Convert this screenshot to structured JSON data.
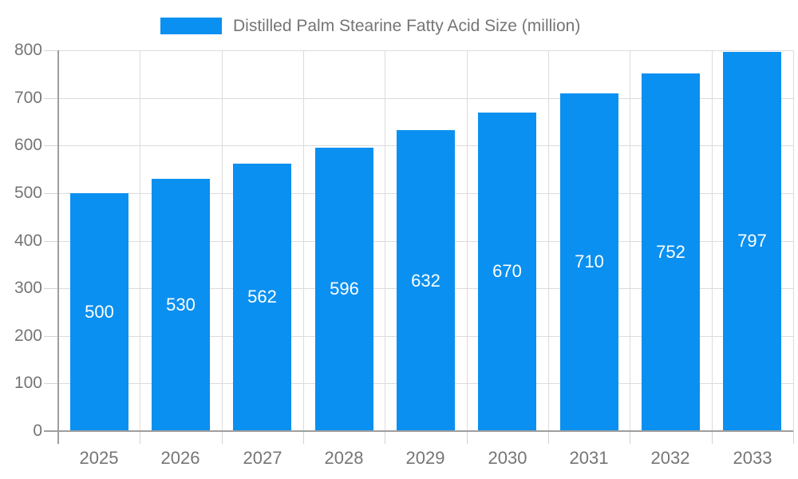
{
  "chart_data": {
    "type": "bar",
    "title": "Distilled Palm Stearine Fatty Acid Size (million)",
    "legend": {
      "position": "top",
      "entries": [
        "Distilled Palm Stearine Fatty Acid Size (million)"
      ]
    },
    "categories": [
      "2025",
      "2026",
      "2027",
      "2028",
      "2029",
      "2030",
      "2031",
      "2032",
      "2033"
    ],
    "series": [
      {
        "name": "Distilled Palm Stearine Fatty Acid Size (million)",
        "values": [
          500,
          530,
          562,
          596,
          632,
          670,
          710,
          752,
          797
        ]
      }
    ],
    "value_labels": "inside-center",
    "xlabel": "",
    "ylabel": "",
    "ylim": [
      0,
      800
    ],
    "ytick_step": 100,
    "yticks": [
      0,
      100,
      200,
      300,
      400,
      500,
      600,
      700,
      800
    ],
    "grid": true,
    "colors": {
      "bar": "#0A90F0",
      "value_label": "#FFFFFF",
      "axis_text": "#757575",
      "gridline": "#DCDCDC",
      "tick": "#D3D3D3",
      "axis_line": "#9E9E9E",
      "background": "#FFFFFF"
    }
  }
}
